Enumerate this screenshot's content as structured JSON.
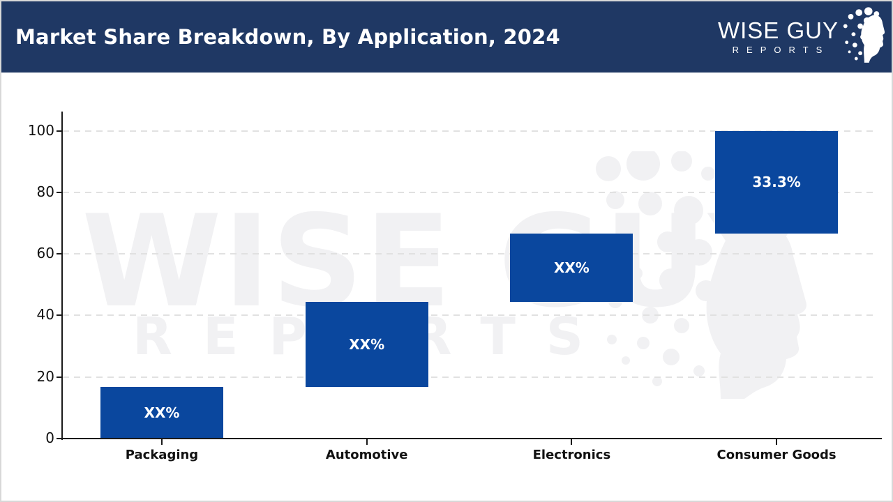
{
  "header": {
    "title": "Market Share Breakdown, By Application, 2024",
    "logo": {
      "name": "WISE GUY",
      "tagline": "REPORTS"
    }
  },
  "watermark": {
    "line1": "WISE GUY",
    "line2": "REPORTS"
  },
  "colors": {
    "header_bg": "#1f3864",
    "bar": "#0a479e",
    "grid": "#e1e1e1",
    "axis": "#1a1a1a",
    "watermark": "#f1f1f3",
    "page_border": "#d8d8d8"
  },
  "chart_data": {
    "type": "bar",
    "subtype": "waterfall",
    "title": "Market Share Breakdown, By Application, 2024",
    "categories": [
      "Packaging",
      "Automotive",
      "Electronics",
      "Consumer Goods"
    ],
    "bars": [
      {
        "category": "Packaging",
        "start": 0,
        "end": 16.7,
        "label": "XX%"
      },
      {
        "category": "Automotive",
        "start": 16.7,
        "end": 44.5,
        "label": "XX%"
      },
      {
        "category": "Electronics",
        "start": 44.5,
        "end": 66.7,
        "label": "XX%"
      },
      {
        "category": "Consumer Goods",
        "start": 66.7,
        "end": 100,
        "label": "33.3%"
      }
    ],
    "ylim": [
      0,
      100
    ],
    "yticks": [
      0,
      20,
      40,
      60,
      80,
      100
    ],
    "grid": "horizontal dashed",
    "legend": "none",
    "xlabel": "",
    "ylabel": ""
  }
}
